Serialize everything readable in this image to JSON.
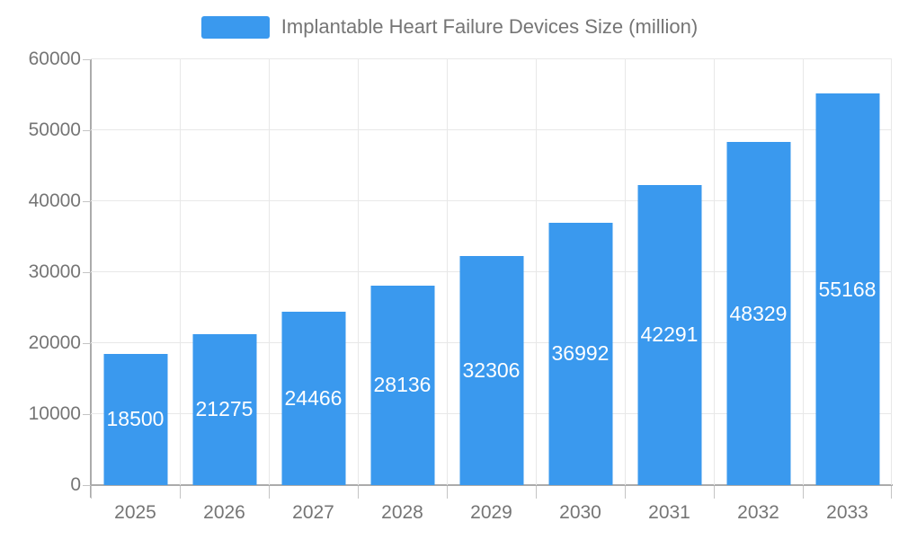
{
  "legend": {
    "label": "Implantable Heart Failure Devices Size (million)"
  },
  "colors": {
    "bar": "#3A99EE",
    "axis_text": "#757575",
    "grid": "#E8E8E8",
    "axis_line": "#ABABAB",
    "tick": "#C4C4C4",
    "bar_label": "#FFFFFF",
    "background": "#FFFFFF"
  },
  "chart_data": {
    "type": "bar",
    "title": "Implantable Heart Failure Devices Size (million)",
    "series": [
      {
        "name": "Implantable Heart Failure Devices Size (million)",
        "values": [
          18500,
          21275,
          24466,
          28136,
          32306,
          36992,
          42291,
          48329,
          55168
        ]
      }
    ],
    "categories": [
      "2025",
      "2026",
      "2027",
      "2028",
      "2029",
      "2030",
      "2031",
      "2032",
      "2033"
    ],
    "data_labels": [
      "18500",
      "21275",
      "24466",
      "28136",
      "32306",
      "36992",
      "42291",
      "48329",
      "55168"
    ],
    "xlabel": "",
    "ylabel": "",
    "ylim": [
      0,
      60000
    ],
    "ytick_interval": 10000,
    "yticks": [
      0,
      10000,
      20000,
      30000,
      40000,
      50000,
      60000
    ],
    "grid": true,
    "legend_position": "top-center",
    "data_label_position": "inside-center"
  }
}
